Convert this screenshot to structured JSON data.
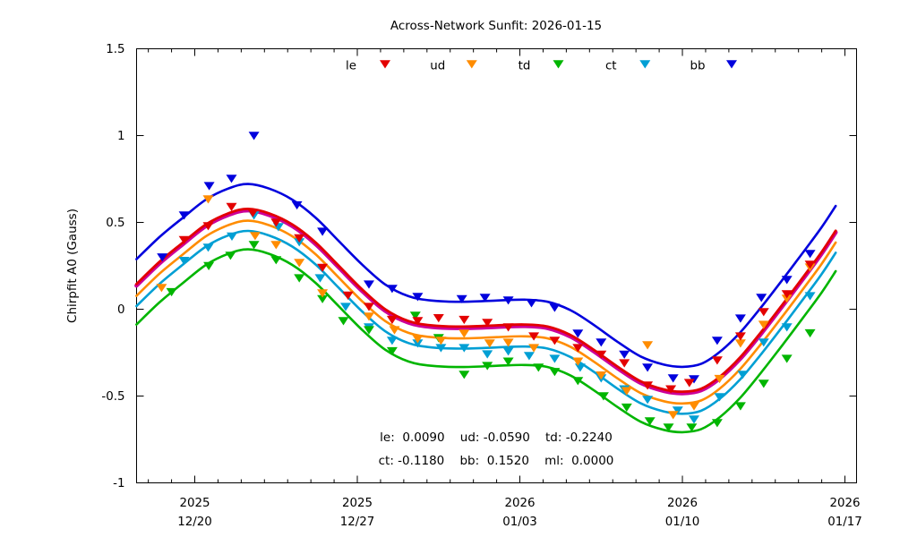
{
  "chart_data": {
    "type": "line",
    "title": "Across-Network Sunfit: 2026-01-15",
    "xlabel": "",
    "ylabel": "Chirpfit A0 (Gauss)",
    "ylim": [
      -1,
      1.5
    ],
    "grid": false,
    "legend_position": "top-center-inside",
    "yticks": [
      {
        "v": 1.5,
        "label": "1.5"
      },
      {
        "v": 1.0,
        "label": "1"
      },
      {
        "v": 0.5,
        "label": "0.5"
      },
      {
        "v": 0.0,
        "label": "0"
      },
      {
        "v": -0.5,
        "label": "-0.5"
      },
      {
        "v": -1.0,
        "label": "-1"
      }
    ],
    "x_axis": {
      "xlim_days": [
        -2.507,
        28.5
      ],
      "minor_tick_every_days": 1,
      "major_ticks": [
        {
          "day": 0,
          "line1": "2025",
          "line2": "12/20"
        },
        {
          "day": 7,
          "line1": "2025",
          "line2": "12/27"
        },
        {
          "day": 14,
          "line1": "2026",
          "line2": "01/03"
        },
        {
          "day": 21,
          "line1": "2026",
          "line2": "01/10"
        },
        {
          "day": 28,
          "line1": "2026",
          "line2": "01/17"
        }
      ]
    },
    "legend_entries": [
      "le",
      "ud",
      "td",
      "ct",
      "bb"
    ],
    "fit_base_curve": {
      "days": [
        -2.51,
        -1.5,
        -0.5,
        0.5,
        1.5,
        2.3,
        3.2,
        4.2,
        5.2,
        6.2,
        7.2,
        8.2,
        9.2,
        10.2,
        11.5,
        13.0,
        14.2,
        15.2,
        16.2,
        17.2,
        18.2,
        19.2,
        20.2,
        21.0,
        21.8,
        22.6,
        23.5,
        24.4,
        25.3,
        26.2,
        27.0,
        27.6
      ],
      "values": [
        0.136,
        0.266,
        0.376,
        0.481,
        0.546,
        0.569,
        0.543,
        0.479,
        0.376,
        0.241,
        0.106,
        -0.009,
        -0.077,
        -0.102,
        -0.109,
        -0.102,
        -0.097,
        -0.109,
        -0.159,
        -0.244,
        -0.339,
        -0.424,
        -0.471,
        -0.484,
        -0.467,
        -0.399,
        -0.284,
        -0.139,
        0.016,
        0.176,
        0.321,
        0.443
      ]
    },
    "coefficients": {
      "le": 0.009,
      "ud": -0.059,
      "td": -0.224,
      "ct": -0.118,
      "bb": 0.152,
      "ml": 0.0
    },
    "annotation_lines": [
      "le:  0.0090    ud: -0.0590    td: -0.2240",
      "ct: -0.1180    bb:  0.1520    ml:  0.0000"
    ],
    "series": [
      {
        "name": "ml",
        "color": "#cc0099",
        "line_width": 4.6,
        "offset": 0.0,
        "marker": "none",
        "points": []
      },
      {
        "name": "bb",
        "color": "#0000dd",
        "line_width": 2.6,
        "offset": 0.152,
        "marker": "triangle-down",
        "points": [
          [
            -1.4,
            0.3
          ],
          [
            -0.46,
            0.541
          ],
          [
            0.62,
            0.711
          ],
          [
            1.58,
            0.753
          ],
          [
            2.55,
            1.0
          ],
          [
            4.4,
            0.6
          ],
          [
            5.5,
            0.448
          ],
          [
            7.5,
            0.144
          ],
          [
            8.5,
            0.119
          ],
          [
            9.6,
            0.072
          ],
          [
            11.5,
            0.06
          ],
          [
            12.5,
            0.067
          ],
          [
            13.5,
            0.052
          ],
          [
            14.5,
            0.036
          ],
          [
            15.5,
            0.01
          ],
          [
            16.5,
            -0.139
          ],
          [
            17.5,
            -0.19
          ],
          [
            18.5,
            -0.26
          ],
          [
            19.5,
            -0.335
          ],
          [
            20.6,
            -0.397
          ],
          [
            21.5,
            -0.402
          ],
          [
            22.5,
            -0.18
          ],
          [
            23.5,
            -0.052
          ],
          [
            24.4,
            0.067
          ],
          [
            25.5,
            0.17
          ],
          [
            26.5,
            0.32
          ]
        ]
      },
      {
        "name": "ct",
        "color": "#009fd4",
        "line_width": 2.6,
        "offset": -0.118,
        "marker": "triangle-down",
        "points": [
          [
            -0.46,
            0.28
          ],
          [
            0.58,
            0.356
          ],
          [
            1.6,
            0.42
          ],
          [
            2.55,
            0.541
          ],
          [
            3.6,
            0.474
          ],
          [
            4.5,
            0.387
          ],
          [
            5.4,
            0.18
          ],
          [
            6.5,
            0.015
          ],
          [
            7.5,
            -0.103
          ],
          [
            8.5,
            -0.18
          ],
          [
            9.6,
            -0.196
          ],
          [
            10.6,
            -0.222
          ],
          [
            11.6,
            -0.222
          ],
          [
            12.6,
            -0.258
          ],
          [
            13.5,
            -0.242
          ],
          [
            14.4,
            -0.268
          ],
          [
            15.5,
            -0.284
          ],
          [
            16.6,
            -0.335
          ],
          [
            17.5,
            -0.397
          ],
          [
            18.5,
            -0.46
          ],
          [
            19.5,
            -0.52
          ],
          [
            20.8,
            -0.582
          ],
          [
            21.5,
            -0.634
          ],
          [
            22.6,
            -0.505
          ],
          [
            23.6,
            -0.376
          ],
          [
            24.5,
            -0.19
          ],
          [
            25.5,
            -0.103
          ],
          [
            26.5,
            0.077
          ]
        ]
      },
      {
        "name": "td",
        "color": "#00b500",
        "line_width": 2.6,
        "offset": -0.224,
        "marker": "triangle-down",
        "points": [
          [
            -1.0,
            0.1
          ],
          [
            0.6,
            0.25
          ],
          [
            1.54,
            0.31
          ],
          [
            2.55,
            0.371
          ],
          [
            3.5,
            0.284
          ],
          [
            4.5,
            0.18
          ],
          [
            5.5,
            0.06
          ],
          [
            6.4,
            -0.067
          ],
          [
            7.5,
            -0.119
          ],
          [
            8.5,
            -0.24
          ],
          [
            9.5,
            -0.036
          ],
          [
            10.5,
            -0.165
          ],
          [
            11.6,
            -0.376
          ],
          [
            12.6,
            -0.325
          ],
          [
            13.5,
            -0.3
          ],
          [
            14.8,
            -0.335
          ],
          [
            15.5,
            -0.36
          ],
          [
            16.5,
            -0.412
          ],
          [
            17.6,
            -0.5
          ],
          [
            18.6,
            -0.565
          ],
          [
            19.6,
            -0.644
          ],
          [
            20.4,
            -0.68
          ],
          [
            21.4,
            -0.68
          ],
          [
            22.5,
            -0.654
          ],
          [
            23.5,
            -0.557
          ],
          [
            24.5,
            -0.428
          ],
          [
            25.5,
            -0.284
          ],
          [
            26.5,
            -0.137
          ]
        ]
      },
      {
        "name": "ud",
        "color": "#ff8c00",
        "line_width": 2.6,
        "offset": -0.059,
        "marker": "triangle-down",
        "points": [
          [
            -1.43,
            0.124
          ],
          [
            0.58,
            0.634
          ],
          [
            2.6,
            0.423
          ],
          [
            3.5,
            0.371
          ],
          [
            4.5,
            0.268
          ],
          [
            5.5,
            0.093
          ],
          [
            7.5,
            -0.041
          ],
          [
            8.6,
            -0.119
          ],
          [
            9.6,
            -0.17
          ],
          [
            10.6,
            -0.18
          ],
          [
            11.6,
            -0.139
          ],
          [
            12.7,
            -0.196
          ],
          [
            13.5,
            -0.191
          ],
          [
            14.6,
            -0.222
          ],
          [
            16.5,
            -0.3
          ],
          [
            17.5,
            -0.38
          ],
          [
            18.6,
            -0.47
          ],
          [
            19.5,
            -0.206
          ],
          [
            20.6,
            -0.608
          ],
          [
            21.5,
            -0.557
          ],
          [
            22.6,
            -0.4
          ],
          [
            23.5,
            -0.196
          ],
          [
            24.5,
            -0.088
          ],
          [
            25.5,
            0.062
          ],
          [
            26.5,
            0.242
          ]
        ]
      },
      {
        "name": "le",
        "color": "#e30000",
        "line_width": 2.8,
        "offset": 0.009,
        "marker": "triangle-down",
        "points": [
          [
            -0.46,
            0.4
          ],
          [
            0.58,
            0.48
          ],
          [
            1.58,
            0.59
          ],
          [
            2.5,
            0.555
          ],
          [
            3.5,
            0.5
          ],
          [
            4.5,
            0.41
          ],
          [
            5.5,
            0.24
          ],
          [
            6.6,
            0.08
          ],
          [
            7.5,
            0.015
          ],
          [
            8.5,
            -0.06
          ],
          [
            9.6,
            -0.067
          ],
          [
            10.5,
            -0.05
          ],
          [
            11.6,
            -0.06
          ],
          [
            12.6,
            -0.077
          ],
          [
            13.5,
            -0.103
          ],
          [
            14.6,
            -0.155
          ],
          [
            15.5,
            -0.18
          ],
          [
            16.5,
            -0.222
          ],
          [
            17.5,
            -0.26
          ],
          [
            18.5,
            -0.31
          ],
          [
            19.5,
            -0.438
          ],
          [
            20.5,
            -0.46
          ],
          [
            21.3,
            -0.423
          ],
          [
            22.5,
            -0.294
          ],
          [
            23.5,
            -0.155
          ],
          [
            24.5,
            -0.015
          ],
          [
            25.5,
            0.088
          ],
          [
            26.5,
            0.258
          ]
        ]
      }
    ]
  }
}
